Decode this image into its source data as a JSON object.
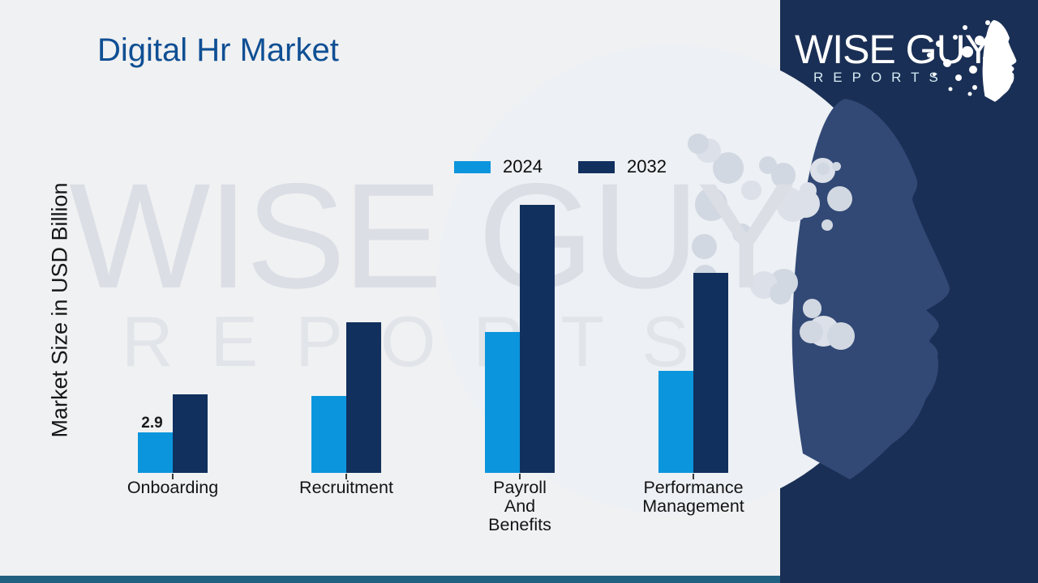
{
  "header": {
    "title": "Digital Hr Market"
  },
  "logo": {
    "brand": "WISE GUY",
    "sub": "REPORTS"
  },
  "watermark": {
    "line1": "WISE GUY",
    "line2": "REPORTS"
  },
  "colors": {
    "page_background": "#f0f1f2",
    "right_panel": "#1a2f55",
    "footer_bar": "#206080",
    "title_text": "#0f4f94",
    "watermark_circle": "#edf0f4",
    "face_silhouette": "#324976",
    "series_2024": "#0b95dd",
    "series_2032": "#11305e"
  },
  "chart_data": {
    "type": "bar",
    "title": "Digital Hr Market",
    "xlabel": "",
    "ylabel": "Market Size in USD Billion",
    "categories": [
      "Onboarding",
      "Recruitment",
      "Payroll And Benefits",
      "Performance Management"
    ],
    "series": [
      {
        "name": "2024",
        "color": "#0b95dd",
        "values": [
          2.9,
          5.5,
          10.1,
          7.3
        ]
      },
      {
        "name": "2032",
        "color": "#11305e",
        "values": [
          5.6,
          10.8,
          19.2,
          14.3
        ]
      }
    ],
    "bar_labels": [
      {
        "series": 0,
        "category": 0,
        "text": "2.9"
      }
    ],
    "ylim": [
      0,
      21
    ],
    "grid": false,
    "legend_position": "top-center"
  }
}
